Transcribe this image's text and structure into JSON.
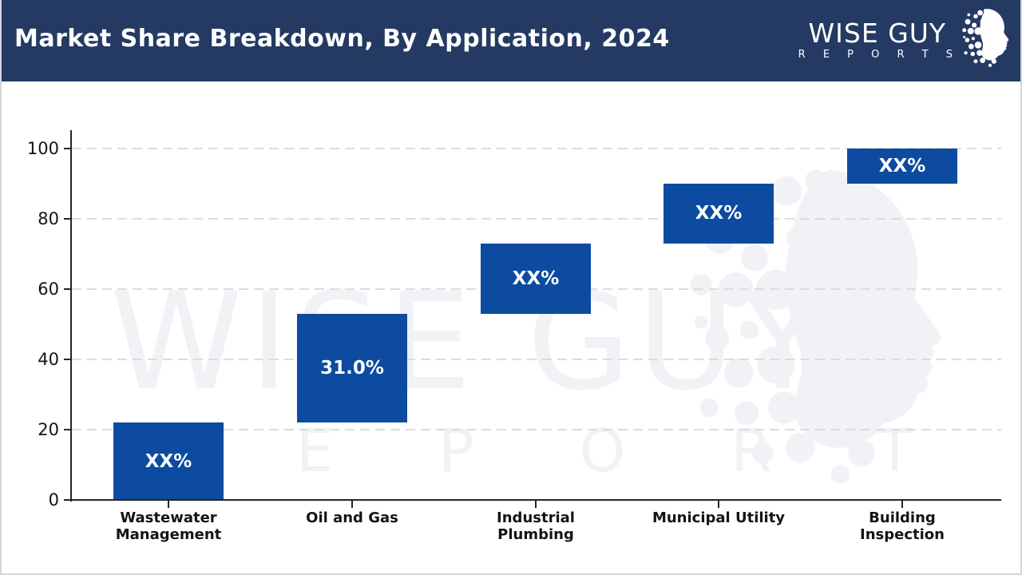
{
  "header": {
    "title": "Market Share Breakdown, By Application, 2024",
    "logo": {
      "name_top": "WISE GUY",
      "name_bottom": "R E P O R T S"
    }
  },
  "watermark": {
    "line1": "WISE GUY",
    "line2": "R E P O R T S"
  },
  "colors": {
    "header_bg": "#243a63",
    "bar": "#0c4ba0",
    "axis": "#262626",
    "grid": "#dcdcdc",
    "watermark": "#f1f2f5"
  },
  "chart_data": {
    "type": "bar",
    "variant": "waterfall",
    "title": "Market Share Breakdown, By Application, 2024",
    "categories": [
      "Wastewater Management",
      "Oil and Gas",
      "Industrial Plumbing",
      "Municipal Utility",
      "Building Inspection"
    ],
    "category_lines": [
      [
        "Wastewater",
        "Management"
      ],
      [
        "Oil and Gas"
      ],
      [
        "Industrial",
        "Plumbing"
      ],
      [
        "Municipal Utility"
      ],
      [
        "Building",
        "Inspection"
      ]
    ],
    "starts": [
      0,
      22,
      53,
      73,
      90
    ],
    "ends": [
      22,
      53,
      73,
      90,
      100
    ],
    "values": [
      22,
      31,
      20,
      17,
      10
    ],
    "bar_labels": [
      "XX%",
      "31.0%",
      "XX%",
      "XX%",
      "XX%"
    ],
    "yticks": [
      0,
      20,
      40,
      60,
      80,
      100
    ],
    "ylim": [
      0,
      105
    ],
    "xlabel": "",
    "ylabel": "",
    "grid": "horizontal-dashed",
    "legend": "none"
  }
}
